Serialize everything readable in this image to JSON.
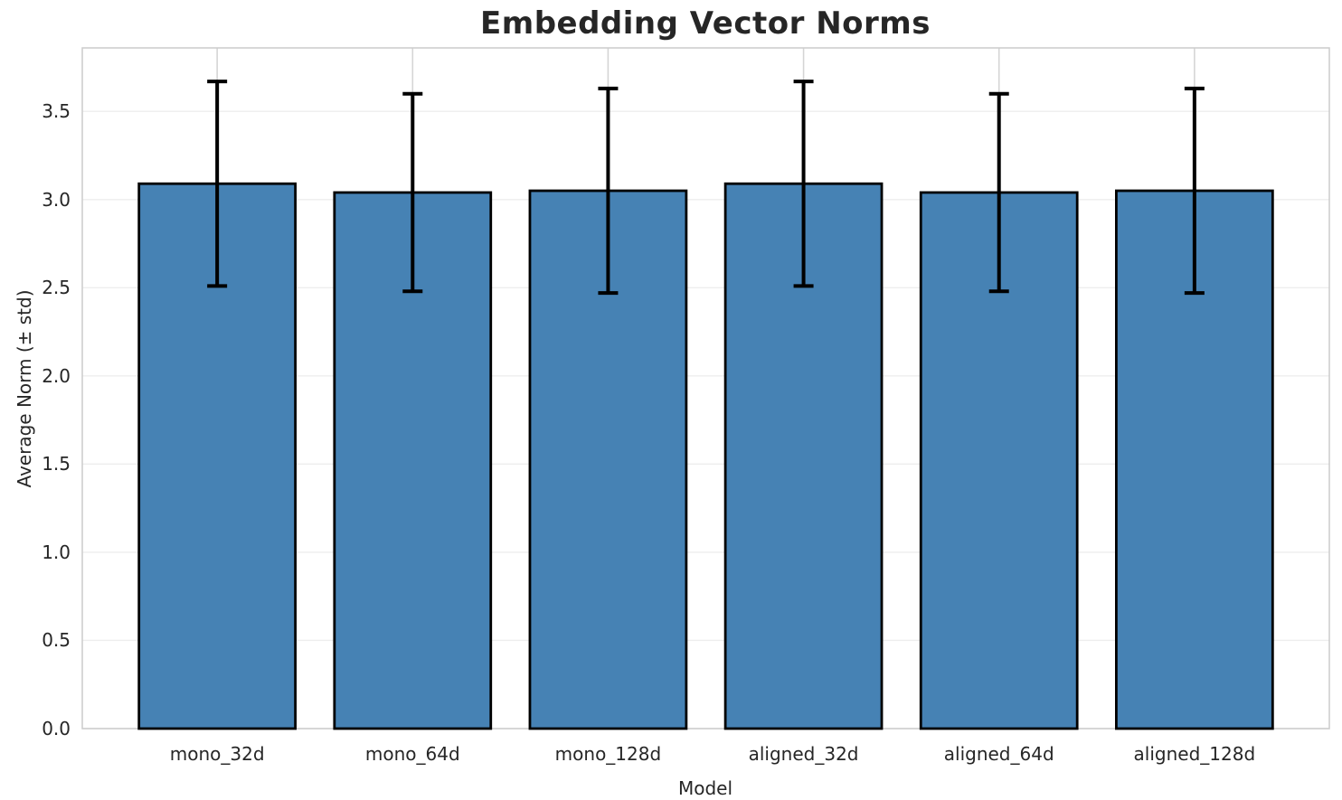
{
  "chart_data": {
    "type": "bar",
    "title": "Embedding Vector Norms",
    "xlabel": "Model",
    "ylabel": "Average Norm (± std)",
    "categories": [
      "mono_32d",
      "mono_64d",
      "mono_128d",
      "aligned_32d",
      "aligned_64d",
      "aligned_128d"
    ],
    "values": [
      3.09,
      3.04,
      3.05,
      3.09,
      3.04,
      3.05
    ],
    "errors": [
      0.58,
      0.56,
      0.58,
      0.58,
      0.56,
      0.58
    ],
    "yticks": [
      0.0,
      0.5,
      1.0,
      1.5,
      2.0,
      2.5,
      3.0,
      3.5
    ],
    "ylim": [
      0,
      3.86
    ],
    "grid": "both-horizontal-and-vertical",
    "legend": "none",
    "colors": {
      "bar_fill": "#4682b4",
      "bar_edge": "#000000",
      "error_bar": "#000000",
      "h_grid_line": "#eeeeee",
      "v_grid_line": "#d5d5d5",
      "spine": "#cccccc",
      "text": "#262626",
      "background": "#ffffff"
    }
  }
}
